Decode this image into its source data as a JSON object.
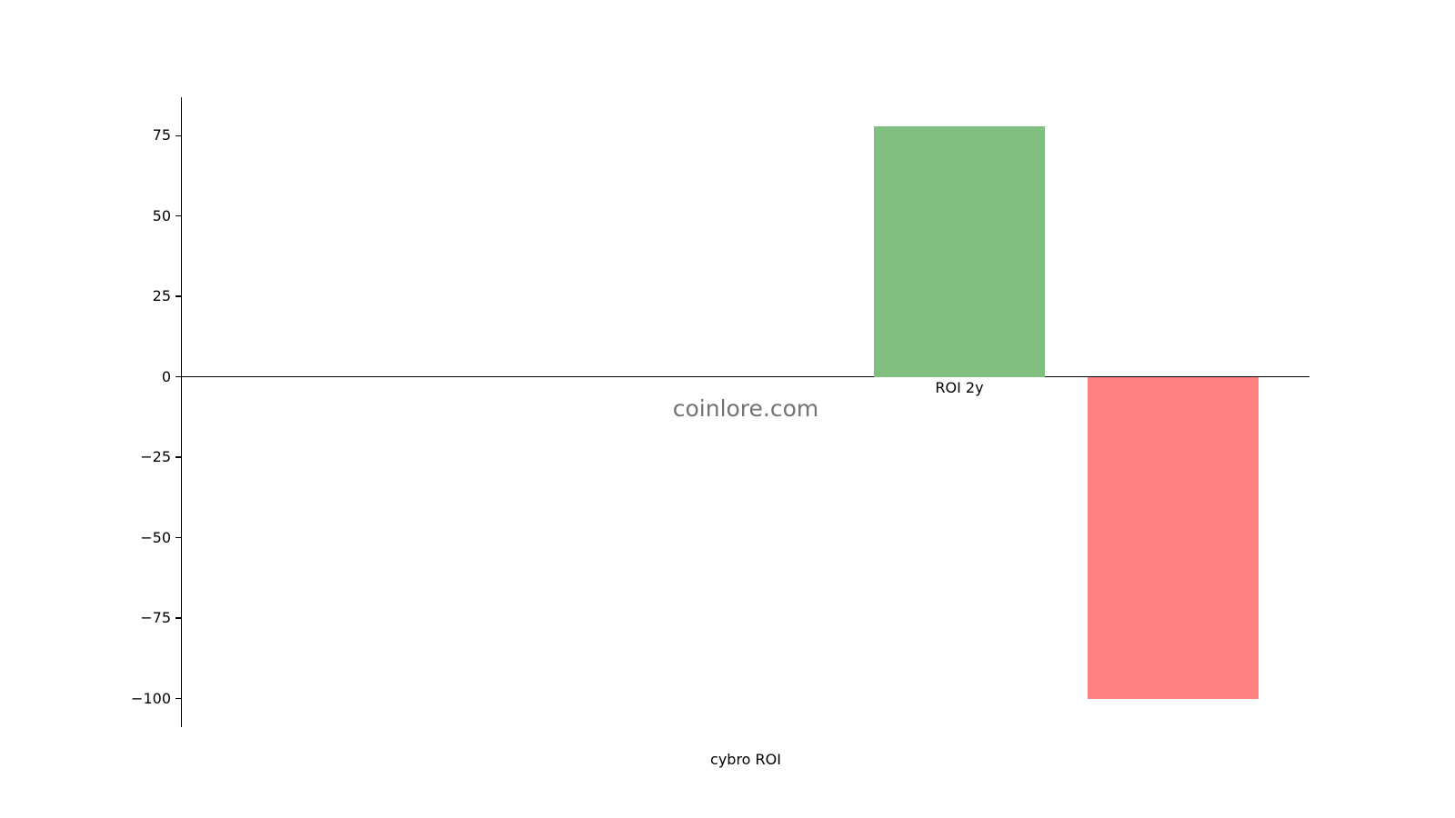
{
  "chart_data": {
    "type": "bar",
    "title": "",
    "xlabel": "cybro ROI",
    "ylabel": "",
    "watermark": "coinlore.com",
    "categories": [
      "ROI 2y",
      ""
    ],
    "values": [
      78,
      -100
    ],
    "colors": [
      "#80bf80",
      "#ff8080"
    ],
    "yticks": [
      75,
      50,
      25,
      0,
      -25,
      -50,
      -75,
      -100
    ],
    "ylim": [
      -108.9,
      86.9
    ],
    "grid": false,
    "legend": false,
    "axis_color": "#000000",
    "text_color": "#000000",
    "watermark_color": "#737373"
  }
}
